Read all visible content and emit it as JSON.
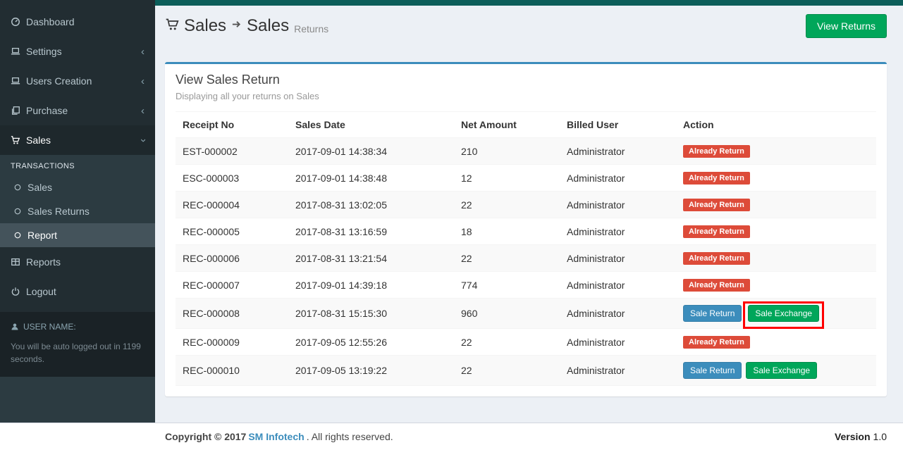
{
  "sidebar": {
    "items": [
      {
        "label": "Dashboard"
      },
      {
        "label": "Settings"
      },
      {
        "label": "Users Creation"
      },
      {
        "label": "Purchase"
      },
      {
        "label": "Sales"
      }
    ],
    "section_label": "TRANSACTIONS",
    "subitems": [
      {
        "label": "Sales"
      },
      {
        "label": "Sales Returns"
      },
      {
        "label": "Report"
      }
    ],
    "bottom_items": [
      {
        "label": "Reports"
      },
      {
        "label": "Logout"
      }
    ],
    "user_panel": {
      "username_label": "USER NAME:",
      "logout_notice": "You will be auto logged out in 1199 seconds."
    }
  },
  "header": {
    "breadcrumb_part1": "Sales",
    "breadcrumb_part2": "Sales",
    "breadcrumb_suffix": "Returns",
    "view_returns_button": "View Returns"
  },
  "card": {
    "title": "View Sales Return",
    "subtitle": "Displaying all your returns on Sales"
  },
  "table": {
    "columns": [
      "Receipt No",
      "Sales Date",
      "Net Amount",
      "Billed User",
      "Action"
    ],
    "action_labels": {
      "already": "Already Return",
      "sale_return": "Sale Return",
      "sale_exchange": "Sale Exchange"
    },
    "rows": [
      {
        "receipt": "EST-000002",
        "date": "2017-09-01 14:38:34",
        "amount": "210",
        "user": "Administrator",
        "action": "already"
      },
      {
        "receipt": "ESC-000003",
        "date": "2017-09-01 14:38:48",
        "amount": "12",
        "user": "Administrator",
        "action": "already"
      },
      {
        "receipt": "REC-000004",
        "date": "2017-08-31 13:02:05",
        "amount": "22",
        "user": "Administrator",
        "action": "already"
      },
      {
        "receipt": "REC-000005",
        "date": "2017-08-31 13:16:59",
        "amount": "18",
        "user": "Administrator",
        "action": "already"
      },
      {
        "receipt": "REC-000006",
        "date": "2017-08-31 13:21:54",
        "amount": "22",
        "user": "Administrator",
        "action": "already"
      },
      {
        "receipt": "REC-000007",
        "date": "2017-09-01 14:39:18",
        "amount": "774",
        "user": "Administrator",
        "action": "already"
      },
      {
        "receipt": "REC-000008",
        "date": "2017-08-31 15:15:30",
        "amount": "960",
        "user": "Administrator",
        "action": "buttons",
        "highlight_exchange": true
      },
      {
        "receipt": "REC-000009",
        "date": "2017-09-05 12:55:26",
        "amount": "22",
        "user": "Administrator",
        "action": "already"
      },
      {
        "receipt": "REC-000010",
        "date": "2017-09-05 13:19:22",
        "amount": "22",
        "user": "Administrator",
        "action": "buttons",
        "highlight_exchange": false
      }
    ]
  },
  "footer": {
    "copyright_prefix": "Copyright © 2017",
    "company": "SM Infotech",
    "copyright_suffix": ". All rights reserved.",
    "version_label": "Version",
    "version_value": "1.0"
  },
  "colors": {
    "accent_blue": "#3c8dbc",
    "action_green": "#00a65a",
    "badge_red": "#dd4b39",
    "highlight_red": "#ff0000",
    "topbar_teal": "#0c5e5a",
    "sidebar_dark": "#222d32"
  }
}
